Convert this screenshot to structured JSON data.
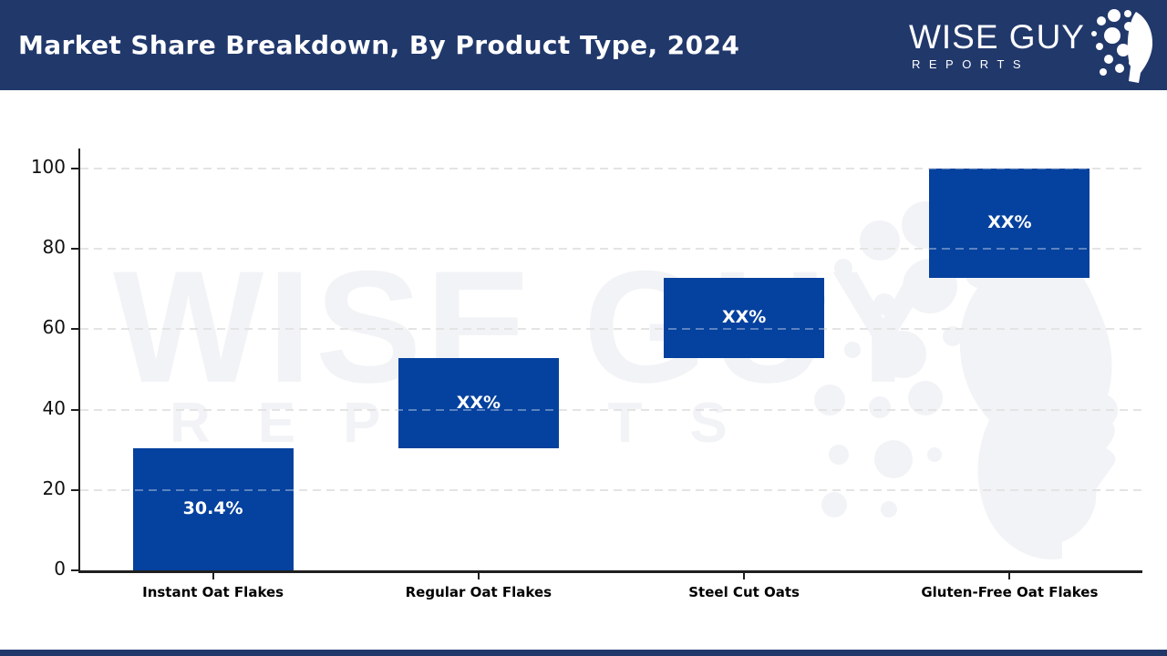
{
  "header": {
    "title": "Market Share Breakdown, By Product Type, 2024",
    "logo": {
      "name": "WISE GUY",
      "sub": "REPORTS"
    }
  },
  "watermark": {
    "name": "WISE GUY",
    "sub": "REPORTS"
  },
  "colors": {
    "header_bg": "#21386B",
    "footer_bg": "#21386B",
    "bar_fill": "#05419E",
    "bar_label_text": "#FFFFFF",
    "grid_line": "#D6D6D6",
    "axis_line": "#1F1F1F",
    "tick_label_text": "#111111",
    "category_label_text": "#000000",
    "title_text": "#FFFFFF",
    "watermark_color": "#F2F3F6"
  },
  "chart_data": {
    "type": "bar",
    "subtype": "waterfall",
    "title": "Market Share Breakdown, By Product Type, 2024",
    "categories": [
      "Instant Oat Flakes",
      "Regular Oat Flakes",
      "Steel Cut Oats",
      "Gluten-Free Oat Flakes"
    ],
    "series": [
      {
        "name": "Market share (%)",
        "segments": [
          {
            "category": "Instant Oat Flakes",
            "start": 0,
            "end": 30.4,
            "label": "30.4%"
          },
          {
            "category": "Regular Oat Flakes",
            "start": 30.4,
            "end": 52.8,
            "label": "XX%"
          },
          {
            "category": "Steel Cut Oats",
            "start": 52.8,
            "end": 72.9,
            "label": "XX%"
          },
          {
            "category": "Gluten-Free Oat Flakes",
            "start": 72.9,
            "end": 100,
            "label": "XX%"
          }
        ]
      }
    ],
    "xlabel": "",
    "ylabel": "",
    "ylim": [
      0,
      105
    ],
    "yticks": [
      0,
      20,
      40,
      60,
      80,
      100
    ],
    "grid": "dashed-horizontal",
    "legend": "none"
  }
}
